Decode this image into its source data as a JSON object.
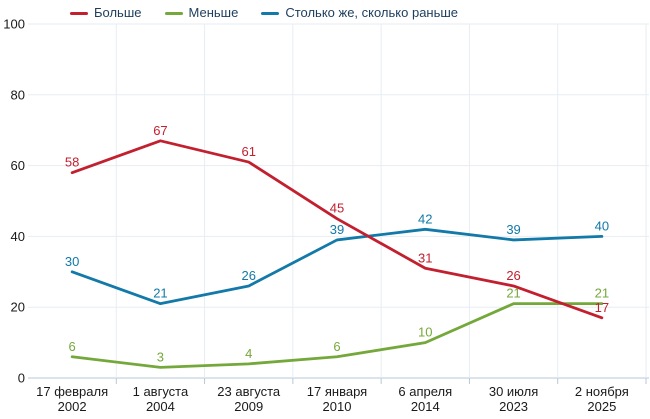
{
  "chart_data": {
    "type": "line",
    "categories": [
      [
        "17 февраля",
        "2002"
      ],
      [
        "1 августа",
        "2004"
      ],
      [
        "23 августа",
        "2009"
      ],
      [
        "17 января",
        "2010"
      ],
      [
        "6 апреля",
        "2014"
      ],
      [
        "30 июля",
        "2023"
      ],
      [
        "2 ноября",
        "2025"
      ]
    ],
    "series": [
      {
        "name": "Больше",
        "color": "#c2202f",
        "values": [
          58,
          67,
          61,
          45,
          31,
          26,
          17
        ]
      },
      {
        "name": "Меньше",
        "color": "#75a83b",
        "values": [
          6,
          3,
          4,
          6,
          10,
          21,
          21
        ]
      },
      {
        "name": "Столько же, сколько раньше",
        "color": "#1279a8",
        "values": [
          30,
          21,
          26,
          39,
          42,
          39,
          40
        ]
      }
    ],
    "y_axis": {
      "min": 0,
      "max": 100,
      "ticks": [
        0,
        20,
        40,
        60,
        80,
        100
      ]
    },
    "grid": true,
    "legend_position": "top",
    "show_point_labels": true
  },
  "colors": {
    "legend_text": "#1c3d5c",
    "axis_text": "#1a1a1a",
    "gridline": "#e7edf3",
    "axis_line": "#b7c9d8",
    "background": "#ffffff"
  }
}
